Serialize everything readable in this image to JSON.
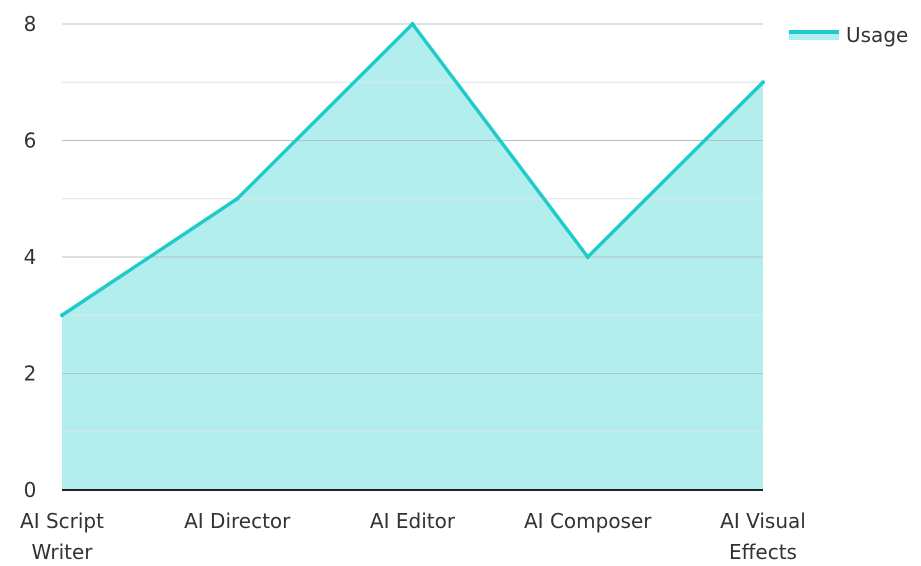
{
  "chart_data": {
    "type": "area",
    "categories": [
      [
        "AI Script",
        "Writer"
      ],
      [
        "AI Director"
      ],
      [
        "AI Editor"
      ],
      [
        "AI Composer"
      ],
      [
        "AI Visual",
        "Effects"
      ]
    ],
    "series": [
      {
        "name": "Usage",
        "values": [
          3,
          5,
          8,
          4,
          7
        ]
      }
    ],
    "yticks": [
      "0",
      "2",
      "4",
      "6",
      "8"
    ],
    "ylim": [
      0,
      8
    ],
    "minor_gridlines": [
      1,
      3,
      5,
      7
    ],
    "grid": true,
    "legend_position": "top-right",
    "colors": {
      "line": "#1ECBCB",
      "fill": "#B2EEEE",
      "grid_major": "#AFC4C4",
      "grid_minor": "#D9E6E6",
      "axis": "#222222"
    }
  }
}
